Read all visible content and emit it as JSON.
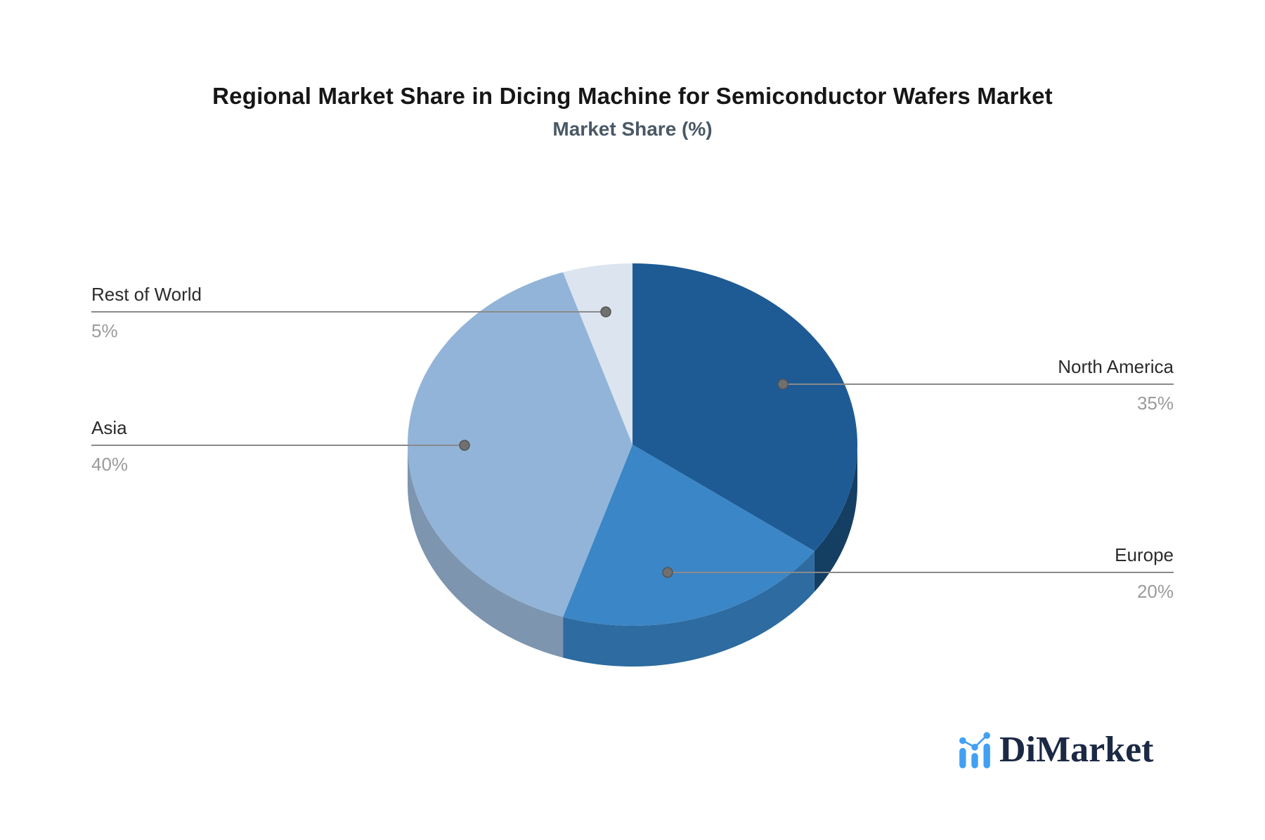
{
  "header": {
    "title": "Regional Market Share in Dicing Machine for Semiconductor Wafers Market",
    "subtitle": "Market Share (%)"
  },
  "chart_data": {
    "type": "pie",
    "style": "3d",
    "unit": "%",
    "direction": "clockwise",
    "start_angle_deg": 0,
    "legend_position": "callouts",
    "title": "Regional Market Share in Dicing Machine for Semiconductor Wafers Market",
    "subtitle": "Market Share (%)",
    "slices": [
      {
        "label": "North America",
        "value": 35,
        "display": "35%",
        "color": "#1E5B95",
        "side_color": "#153E63"
      },
      {
        "label": "Europe",
        "value": 20,
        "display": "20%",
        "color": "#3B86C6",
        "side_color": "#2D6BA0"
      },
      {
        "label": "Asia",
        "value": 40,
        "display": "40%",
        "color": "#92B4D8",
        "side_color": "#7D95AF"
      },
      {
        "label": "Rest of World",
        "value": 5,
        "display": "5%",
        "color": "#DCE4F0",
        "side_color": "#B9C5D8"
      }
    ],
    "callout_line_color": "#8a8a8a",
    "callout_dot_color": "#707070"
  },
  "branding": {
    "logo_text": "DiMarket",
    "logo_icon": "bar-chart-icon",
    "logo_text_color": "#1b2944",
    "logo_accent_color": "#42A0F2"
  }
}
